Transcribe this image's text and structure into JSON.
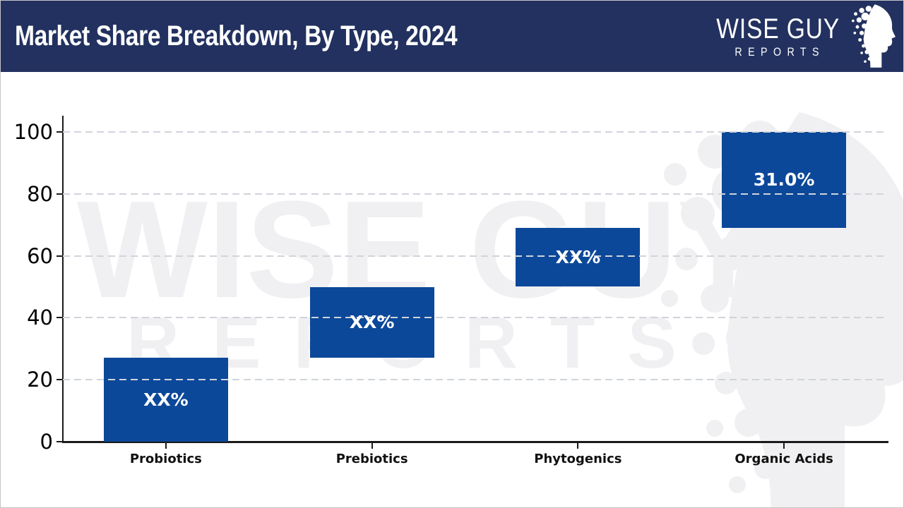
{
  "header": {
    "title": "Market Share Breakdown, By Type, 2024",
    "logo": {
      "line1": "WISE GUY",
      "line2": "REPORTS"
    }
  },
  "watermark": {
    "line1": "WISE GUY",
    "line2": "REPORTS"
  },
  "colors": {
    "header_bg": "#22315f",
    "title_text": "#ffffff",
    "bar": "#0c4899",
    "gridline": "#d0d4da",
    "axis": "#1a1a1a",
    "tick_label": "#000000",
    "watermark": "#f0f0f2"
  },
  "chart_data": {
    "type": "bar",
    "subtype": "floating-waterfall",
    "title": "Market Share Breakdown, By Type, 2024",
    "categories": [
      "Probiotics",
      "Prebiotics",
      "Phytogenics",
      "Organic Acids"
    ],
    "segments": [
      {
        "category": "Probiotics",
        "start": 0,
        "end": 27,
        "label": "XX%"
      },
      {
        "category": "Prebiotics",
        "start": 27,
        "end": 50,
        "label": "XX%"
      },
      {
        "category": "Phytogenics",
        "start": 50,
        "end": 69,
        "label": "XX%"
      },
      {
        "category": "Organic Acids",
        "start": 69,
        "end": 100,
        "label": "31.0%"
      }
    ],
    "xlabel": "",
    "ylabel": "",
    "ylim": [
      0,
      100
    ],
    "yticks": [
      0,
      20,
      40,
      60,
      80,
      100
    ],
    "grid": "horizontal-dashed",
    "legend": "none"
  }
}
